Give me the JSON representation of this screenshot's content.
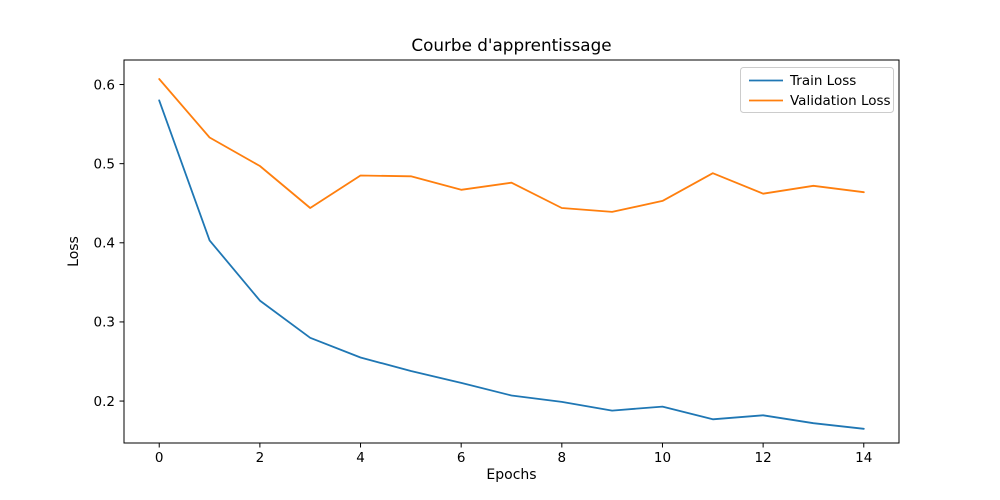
{
  "chart_data": {
    "type": "line",
    "title": "Courbe d'apprentissage",
    "xlabel": "Epochs",
    "ylabel": "Loss",
    "x": [
      0,
      1,
      2,
      3,
      4,
      5,
      6,
      7,
      8,
      9,
      10,
      11,
      12,
      13,
      14
    ],
    "series": [
      {
        "name": "Train Loss",
        "color": "#1f77b4",
        "values": [
          0.58,
          0.403,
          0.327,
          0.28,
          0.255,
          0.238,
          0.223,
          0.207,
          0.199,
          0.188,
          0.193,
          0.177,
          0.182,
          0.172,
          0.165
        ]
      },
      {
        "name": "Validation Loss",
        "color": "#ff7f0e",
        "values": [
          0.607,
          0.533,
          0.497,
          0.444,
          0.485,
          0.484,
          0.467,
          0.476,
          0.444,
          0.439,
          0.453,
          0.488,
          0.462,
          0.472,
          0.464
        ]
      }
    ],
    "xlim": [
      -0.7,
      14.7
    ],
    "ylim": [
      0.147,
      0.631
    ],
    "xticks": [
      0,
      2,
      4,
      6,
      8,
      10,
      12,
      14
    ],
    "yticks": [
      0.2,
      0.3,
      0.4,
      0.5,
      0.6
    ],
    "ytick_labels": [
      "0.2",
      "0.3",
      "0.4",
      "0.5",
      "0.6"
    ],
    "grid": false,
    "legend_position": "upper right",
    "line_width": 1.8
  }
}
